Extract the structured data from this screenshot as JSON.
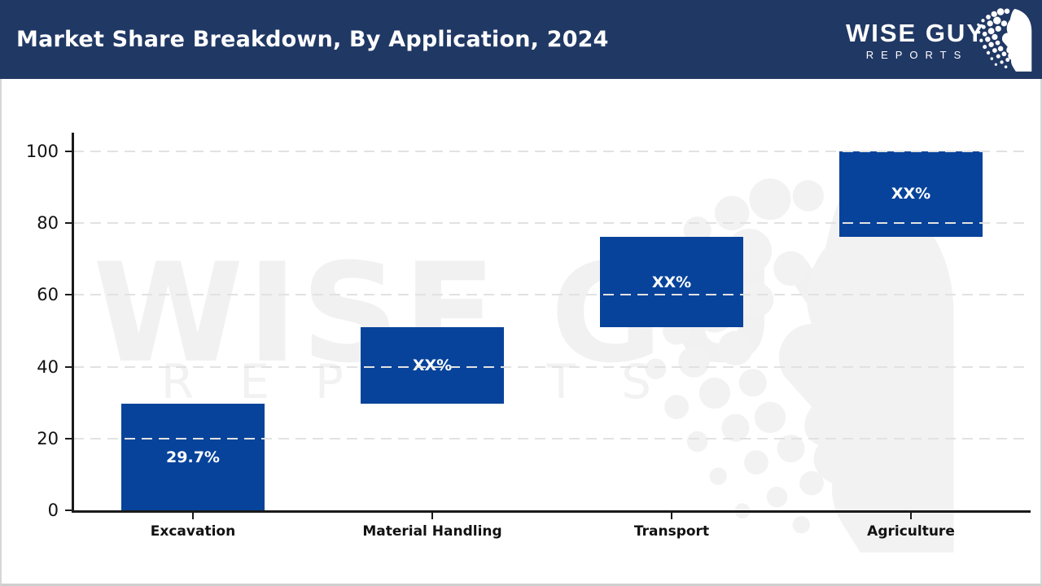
{
  "header": {
    "title": "Market Share Breakdown, By Application, 2024",
    "bg_color": "#203864",
    "logo": {
      "line1": "WISE GUY",
      "line2": "REPORTS"
    }
  },
  "watermark": {
    "line1": "WISE GUY",
    "line2": "REPORTS"
  },
  "chart_data": {
    "type": "bar",
    "subtype": "waterfall",
    "title": "Market Share Breakdown, By Application, 2024",
    "xlabel": "",
    "ylabel": "",
    "categories": [
      "Excavation",
      "Material Handling",
      "Transport",
      "Agriculture"
    ],
    "segments": [
      {
        "category": "Excavation",
        "start": 0,
        "end": 29.7,
        "label": "29.7%"
      },
      {
        "category": "Material Handling",
        "start": 29.7,
        "end": 51.0,
        "label": "XX%"
      },
      {
        "category": "Transport",
        "start": 51.0,
        "end": 76.2,
        "label": "XX%"
      },
      {
        "category": "Agriculture",
        "start": 76.2,
        "end": 100,
        "label": "XX%"
      }
    ],
    "ylim": [
      0,
      105
    ],
    "yticks": [
      0,
      20,
      40,
      60,
      80,
      100
    ],
    "grid": "dashed-horizontal",
    "legend": "none",
    "bar_color": "#07439b",
    "bar_label_color": "#ffffff",
    "axis_color": "#1a1a1a",
    "grid_color": "#e2e2e2",
    "tick_label_color": "#111111"
  }
}
